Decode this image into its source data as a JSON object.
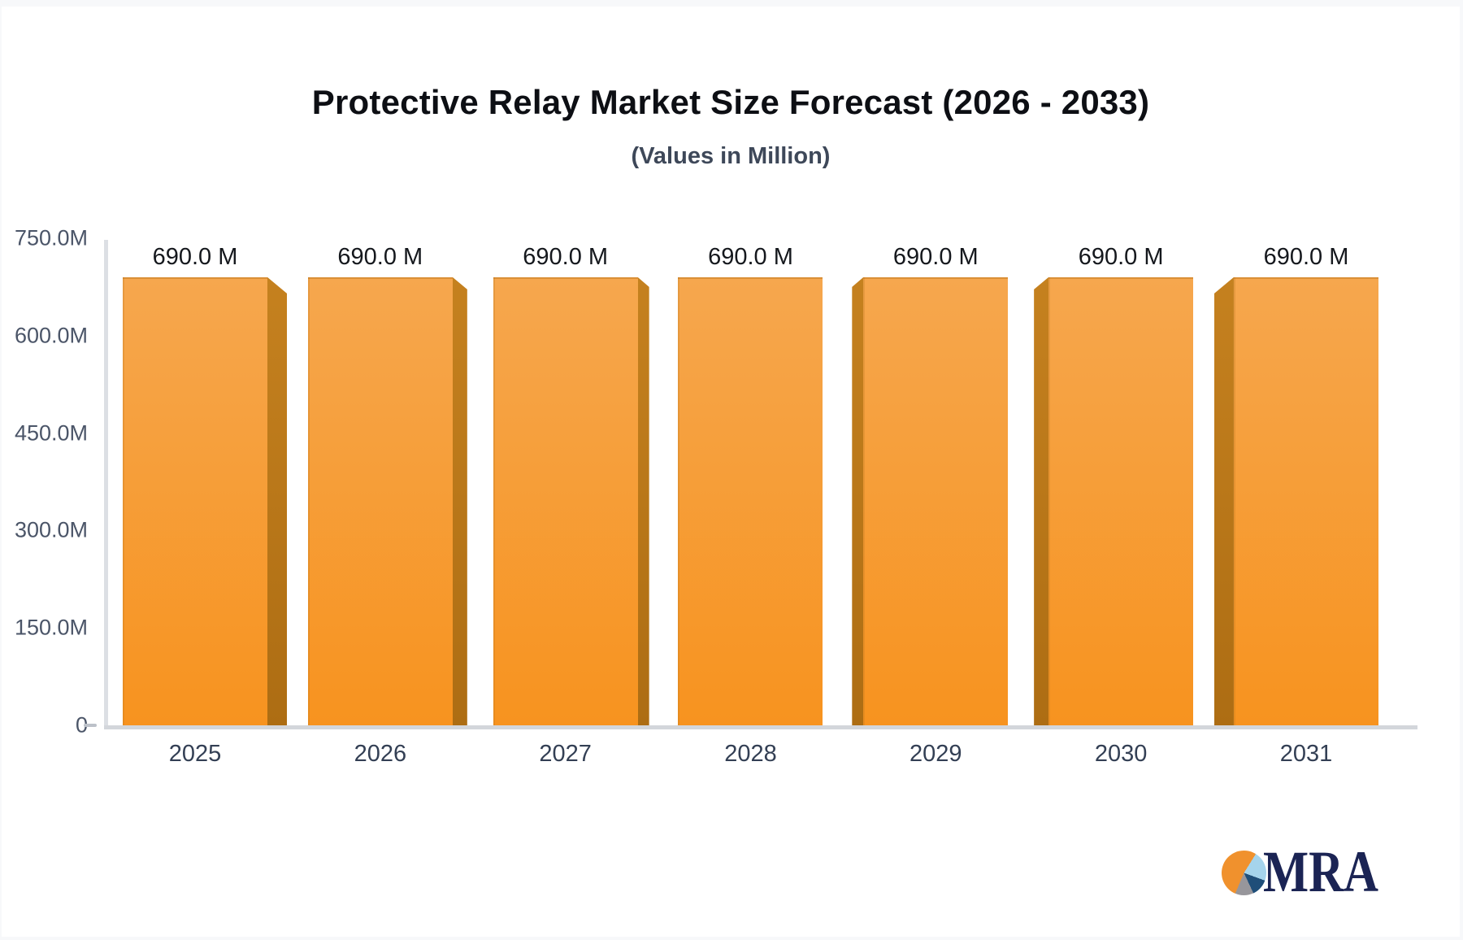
{
  "header": {
    "title": "Protective Relay Market Size Forecast (2026 - 2033)",
    "subtitle": "(Values in Million)"
  },
  "chart_data": {
    "type": "bar",
    "title": "Protective Relay Market Size Forecast (2026 - 2033)",
    "subtitle": "(Values in Million)",
    "unit": "Million",
    "categories": [
      "2025",
      "2026",
      "2027",
      "2028",
      "2029",
      "2030",
      "2031"
    ],
    "values": [
      690,
      690,
      690,
      690,
      690,
      690,
      690
    ],
    "data_labels": [
      "690.0 M",
      "690.0 M",
      "690.0 M",
      "690.0 M",
      "690.0 M",
      "690.0 M",
      "690.0 M"
    ],
    "ylim": [
      0,
      750
    ],
    "yticks": [
      {
        "value": 0,
        "label": "0"
      },
      {
        "value": 150,
        "label": "150.0M"
      },
      {
        "value": 300,
        "label": "300.0M"
      },
      {
        "value": 450,
        "label": "450.0M"
      },
      {
        "value": 600,
        "label": "600.0M"
      },
      {
        "value": 750,
        "label": "750.0M"
      }
    ],
    "xlabel": "",
    "ylabel": "",
    "grid": false,
    "legend": false,
    "colors": {
      "bar_top": "#f6a74e",
      "bar_bottom": "#f7931f",
      "bar_side": "#b97416",
      "axis_line": "#dcdfe4",
      "baseline": "#d3d6db",
      "tick_text": "#4b5568",
      "title_text": "#0d0f14",
      "subtitle_text": "#3e4859"
    }
  },
  "logo": {
    "text": "MRA",
    "colors": {
      "wordmark": "#1b2454",
      "pie_orange": "#f0912d",
      "pie_light_blue": "#a5d4ec",
      "pie_navy": "#1f4e79",
      "pie_gray": "#97969b"
    }
  }
}
